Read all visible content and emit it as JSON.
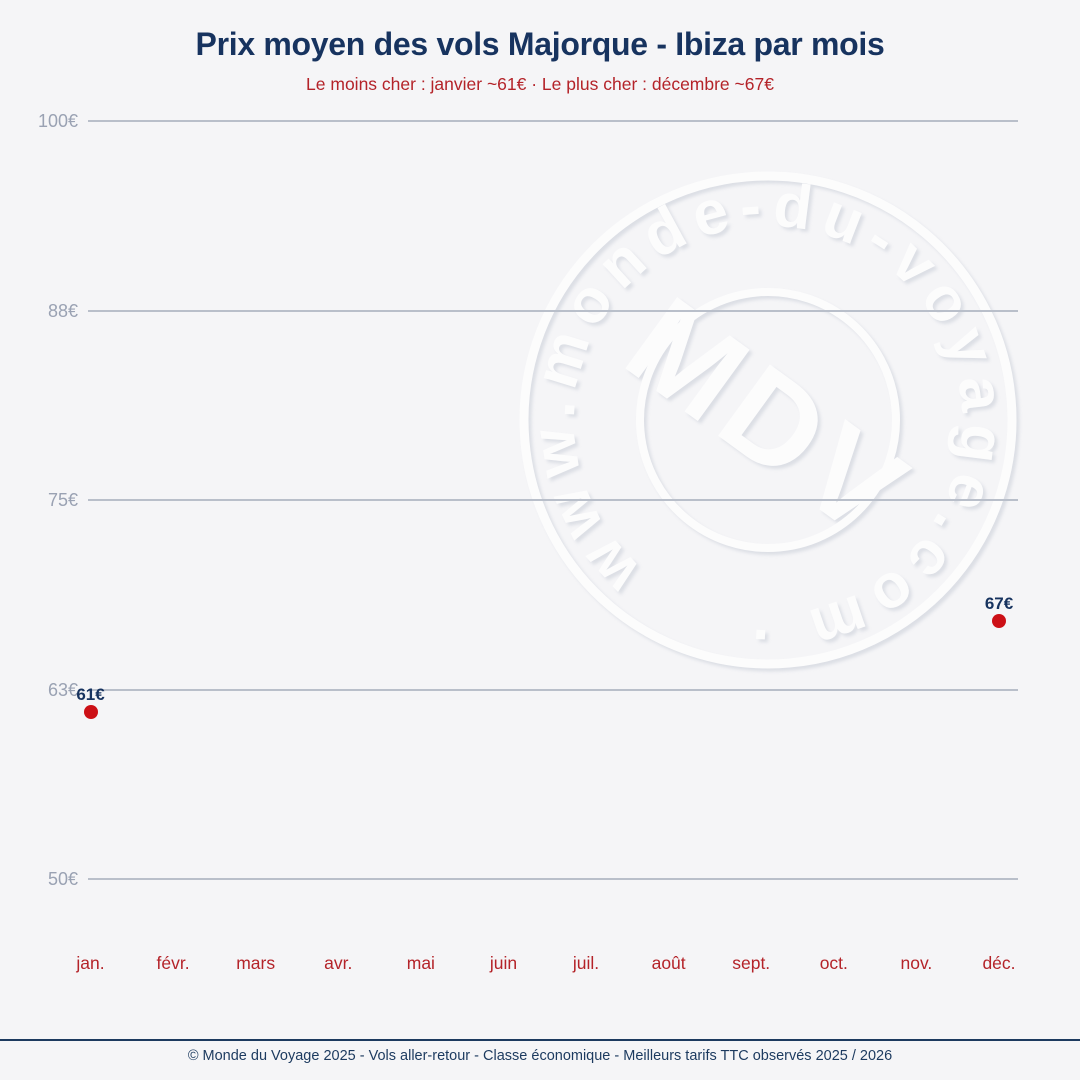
{
  "title": "Prix moyen des vols Majorque - Ibiza par mois",
  "subtitle": "Le moins cher : janvier ~61€ · Le plus cher : décembre ~67€",
  "watermark": {
    "ring_text": "www.monde-du-voyage.com ·",
    "center_text": "MDV"
  },
  "footer": {
    "text": "© Monde du Voyage 2025 - Vols aller-retour - Classe économique - Meilleurs tarifs TTC observés 2025 / 2026"
  },
  "chart_data": {
    "type": "scatter",
    "title": "Prix moyen des vols Majorque - Ibiza par mois",
    "categories": [
      "jan.",
      "févr.",
      "mars",
      "avr.",
      "mai",
      "juin",
      "juil.",
      "août",
      "sept.",
      "oct.",
      "nov.",
      "déc."
    ],
    "values": [
      61,
      null,
      null,
      null,
      null,
      null,
      null,
      null,
      null,
      null,
      null,
      67
    ],
    "points": [
      {
        "category": "jan.",
        "index": 0,
        "value": 61,
        "label": "61€"
      },
      {
        "category": "déc.",
        "index": 11,
        "value": 67,
        "label": "67€"
      }
    ],
    "xlabel": "",
    "ylabel": "",
    "ylim": [
      50,
      100
    ],
    "y_ticks": [
      {
        "value": 100,
        "label": "100€"
      },
      {
        "value": 87.5,
        "label": "88€"
      },
      {
        "value": 75,
        "label": "75€"
      },
      {
        "value": 62.5,
        "label": "63€"
      },
      {
        "value": 50,
        "label": "50€"
      }
    ],
    "grid": true,
    "legend": "none",
    "colors": {
      "background": "#f5f5f7",
      "title": "#17335f",
      "subtitle": "#b42329",
      "month_label": "#b42329",
      "tick_label": "#9aa2b3",
      "gridline": "#b9bfca",
      "point": "#cc1016",
      "footer": "#1c3a5f"
    }
  }
}
